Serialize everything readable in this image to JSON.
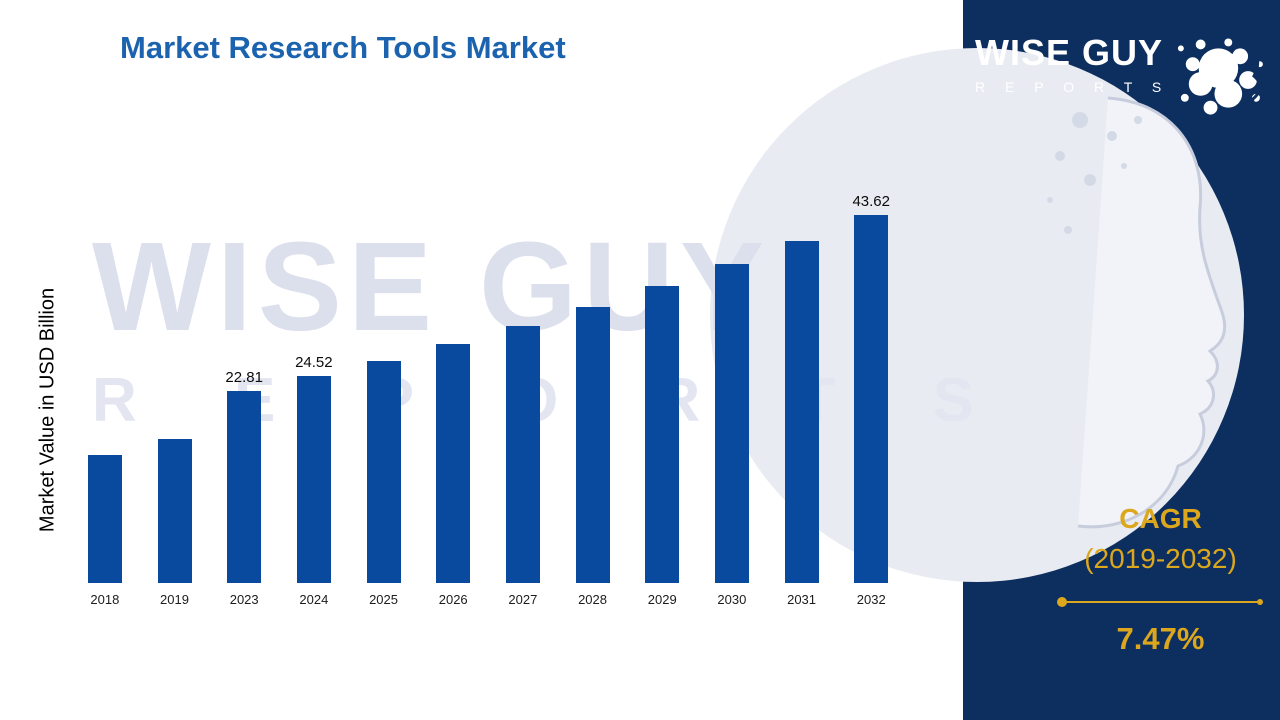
{
  "page": {
    "title": "Market Research Tools Market"
  },
  "watermark": {
    "line1": "WISE GUY",
    "line2": "R E P O R T S"
  },
  "logo": {
    "name": "WISE GUY",
    "sub": "R E P O R T S"
  },
  "cagr": {
    "label": "CAGR",
    "period": "(2019-2032)",
    "value": "7.47%"
  },
  "chart_data": {
    "type": "bar",
    "title": "Market Research Tools Market",
    "ylabel": "Market Value in USD Billion",
    "unit": "USD Billion",
    "categories": [
      "2018",
      "2019",
      "2023",
      "2024",
      "2025",
      "2026",
      "2027",
      "2028",
      "2029",
      "2030",
      "2031",
      "2032"
    ],
    "values": [
      15.2,
      17.1,
      22.81,
      24.52,
      26.35,
      28.32,
      30.43,
      32.71,
      35.15,
      37.78,
      40.59,
      43.62
    ],
    "bar_labels": [
      "",
      "",
      "22.81",
      "24.52",
      "",
      "",
      "",
      "",
      "",
      "",
      "",
      "43.62"
    ],
    "ylim": [
      0,
      48
    ],
    "grid": false,
    "legend": false,
    "bar_color": "#0a4a9e"
  },
  "colors": {
    "title": "#1b63ae",
    "bar": "#0a4a9e",
    "panel": "#0d2f5f",
    "gold": "#dca71d",
    "watermark": "#dcdfec"
  }
}
